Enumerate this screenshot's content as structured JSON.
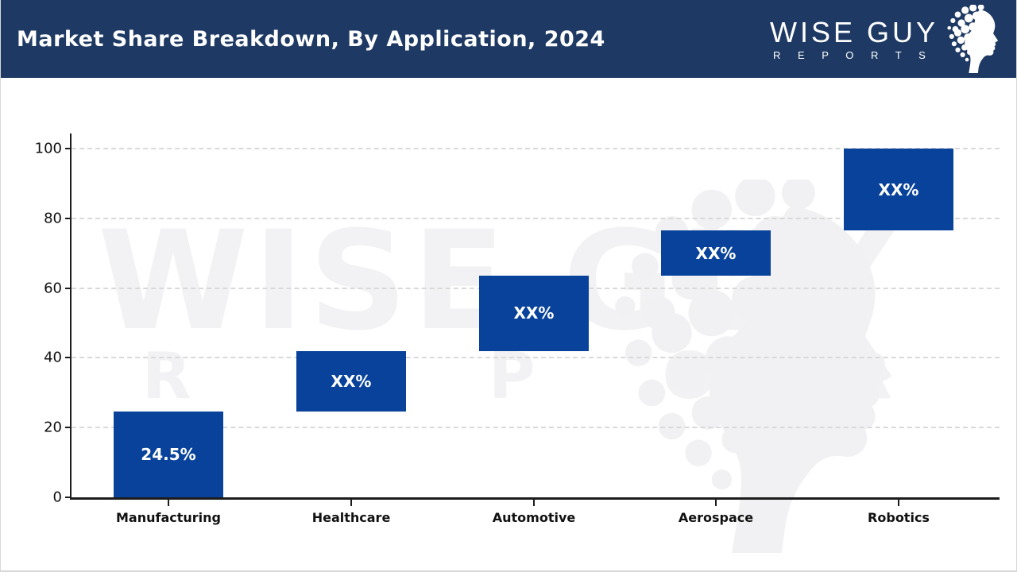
{
  "header": {
    "title": "Market Share Breakdown, By Application, 2024",
    "bg_color": "#1e3a64",
    "logo": {
      "line1": "WISE GUY",
      "line2": "R E P O R T S"
    }
  },
  "watermark": {
    "line1": "WISE GUY",
    "line2": "R E P O R T S"
  },
  "chart_data": {
    "type": "bar",
    "subtype": "waterfall",
    "title": "Market Share Breakdown, By Application, 2024",
    "categories": [
      "Manufacturing",
      "Healthcare",
      "Automotive",
      "Aerospace",
      "Robotics"
    ],
    "segments": [
      {
        "category": "Manufacturing",
        "start": 0,
        "end": 24.5,
        "label": "24.5%"
      },
      {
        "category": "Healthcare",
        "start": 24.5,
        "end": 42,
        "label": "XX%"
      },
      {
        "category": "Automotive",
        "start": 42,
        "end": 63.5,
        "label": "XX%"
      },
      {
        "category": "Aerospace",
        "start": 63.5,
        "end": 76.5,
        "label": "XX%"
      },
      {
        "category": "Robotics",
        "start": 76.5,
        "end": 100,
        "label": "XX%"
      }
    ],
    "ylabel": "",
    "xlabel": "",
    "ylim": [
      0,
      105
    ],
    "yticks": [
      0,
      20,
      40,
      60,
      80,
      100
    ],
    "grid": "horizontal-dashed",
    "legend": "none",
    "bar_color": "#08429a",
    "bar_label_color": "#ffffff",
    "axis_color": "#1c1c1c",
    "grid_color": "#d9d9d9"
  }
}
